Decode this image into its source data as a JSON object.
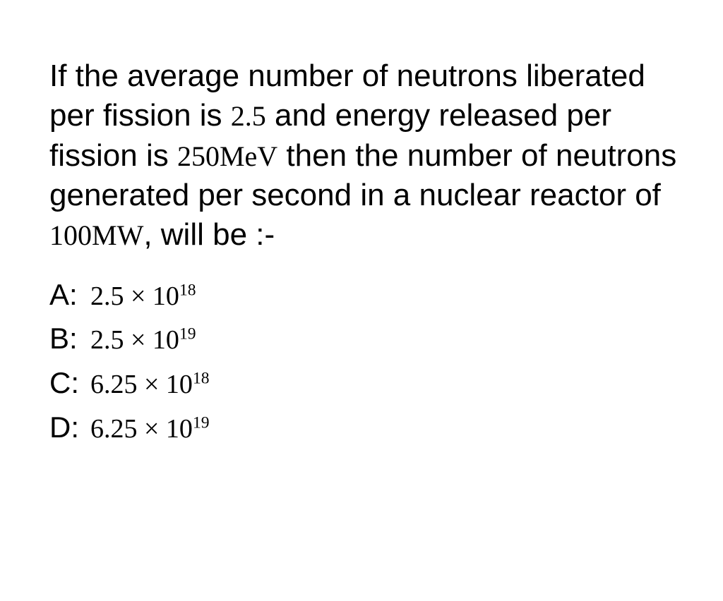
{
  "question": {
    "text_parts": [
      "If the average number of neutrons liberated per fission is ",
      " and energy released per fission is ",
      " then the number of neutrons generated per second in a nuclear reactor of ",
      ", will be :-"
    ],
    "value_neutrons_per_fission": "2.5",
    "value_energy_per_fission": "250MeV",
    "value_reactor_power": "100MW",
    "font_size_main": 44,
    "font_size_num": 40,
    "color_text": "#000000",
    "background": "#ffffff"
  },
  "options": [
    {
      "letter": "A:",
      "coef": "2.5",
      "times": " × 10",
      "exp": "18"
    },
    {
      "letter": "B:",
      "coef": "2.5",
      "times": " × 10",
      "exp": "19"
    },
    {
      "letter": "C:",
      "coef": "6.25",
      "times": " × 10",
      "exp": "18"
    },
    {
      "letter": "D:",
      "coef": "6.25",
      "times": " × 10",
      "exp": "19"
    }
  ],
  "styling": {
    "option_letter_fontsize": 42,
    "option_value_fontsize": 38,
    "option_font_family": "Times New Roman",
    "letter_font_family": "Arial"
  }
}
